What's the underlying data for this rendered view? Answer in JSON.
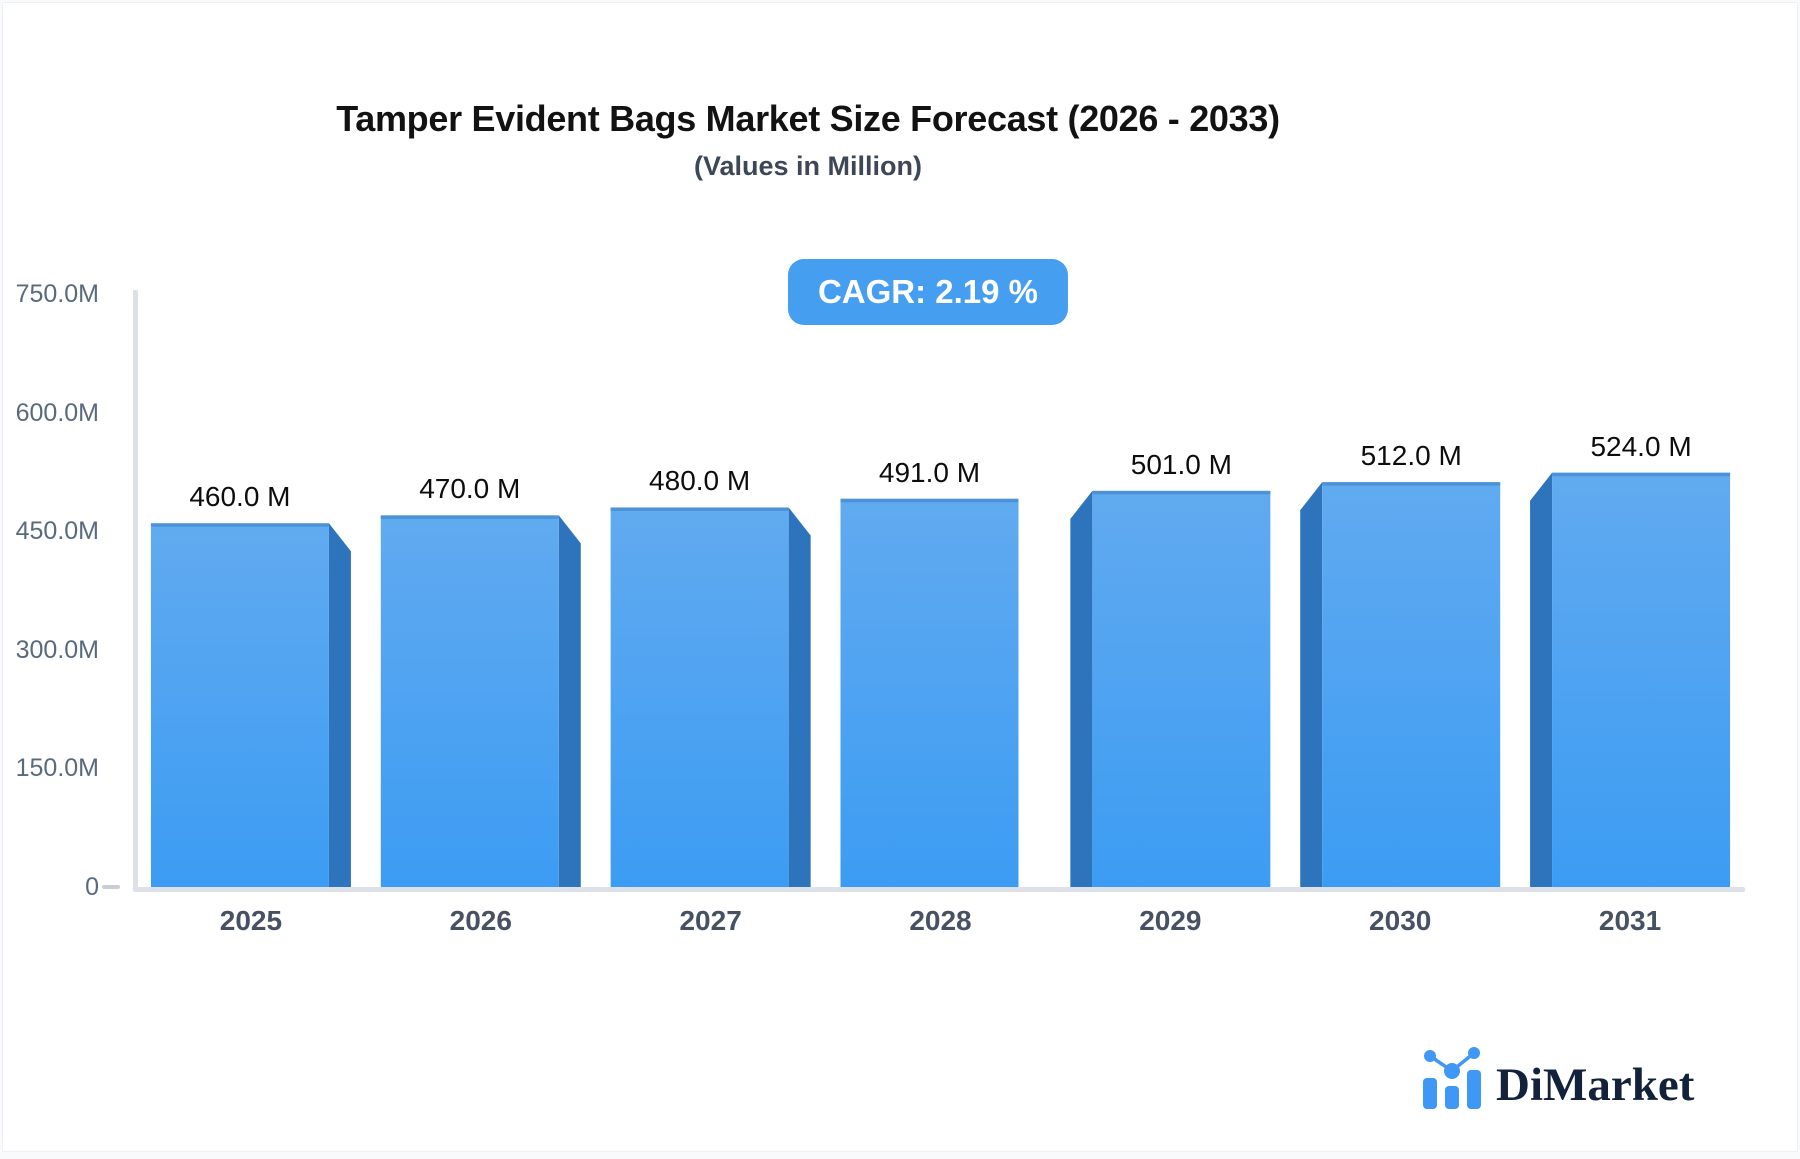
{
  "header": {
    "title": "Tamper Evident Bags Market Size Forecast (2026 - 2033)",
    "subtitle": "(Values in Million)"
  },
  "badge": {
    "label": "CAGR: 2.19 %"
  },
  "brand": {
    "name": "DiMarket",
    "logo_icon": "mini-bar-chart-with-dots"
  },
  "colors": {
    "badge_bg": "#459EEF",
    "bar_face_top": "#61AAF0",
    "bar_face_bottom": "#3C9CF3",
    "bar_side": "#2D74BC",
    "bar_top_edge": "#4B8FD3",
    "axis_line": "#DDE1E7",
    "tick_dash": "#C9CED4",
    "text_title": "#121212",
    "text_subtitle": "#3E4756",
    "text_value": "#0D0D0D",
    "text_x_tick": "#475163",
    "text_y_tick": "#5A6A7D",
    "brand_navy": "#14213A",
    "brand_blue": "#3F97F6",
    "card_bg": "#FFFFFF",
    "page_bg": "#F8FAFC"
  },
  "chart_data": {
    "type": "bar",
    "title": "Tamper Evident Bags Market Size Forecast (2026 - 2033)",
    "subtitle": "(Values in Million)",
    "annotation": "CAGR: 2.19 %",
    "unit": "Million",
    "categories": [
      "2025",
      "2026",
      "2027",
      "2028",
      "2029",
      "2030",
      "2031"
    ],
    "values": [
      460.0,
      470.0,
      480.0,
      491.0,
      501.0,
      512.0,
      524.0
    ],
    "value_labels": [
      "460.0 M",
      "470.0 M",
      "480.0 M",
      "491.0 M",
      "501.0 M",
      "512.0 M",
      "524.0 M"
    ],
    "xlabel": "",
    "ylabel": "",
    "ylim": [
      0,
      750
    ],
    "y_ticks": [
      {
        "value": 750,
        "label": "750.0M"
      },
      {
        "value": 600,
        "label": "600.0M"
      },
      {
        "value": 450,
        "label": "450.0M"
      },
      {
        "value": 300,
        "label": "300.0M"
      },
      {
        "value": 150,
        "label": "150.0M"
      },
      {
        "value": 0,
        "label": "0"
      }
    ],
    "grid": false,
    "legend": false,
    "bar_style": "3d-beveled"
  }
}
